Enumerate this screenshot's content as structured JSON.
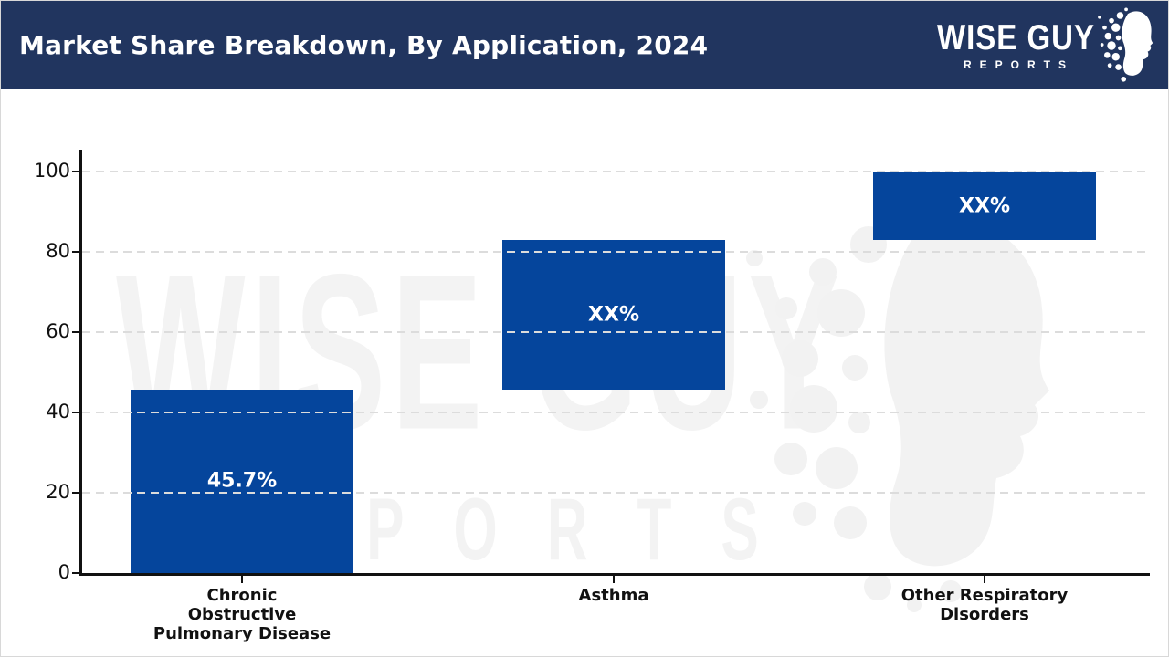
{
  "header": {
    "title": "Market Share Breakdown, By Application, 2024",
    "logo": {
      "line1": "WISE GUY",
      "line2": "REPORTS"
    }
  },
  "watermark": {
    "line1": "WISE GUY",
    "line2": "REPORTS"
  },
  "colors": {
    "header_bg": "#21355f",
    "bar": "#05459c",
    "bar_label_text": "#ffffff",
    "gridline": "#dcdcdc",
    "axis": "#111111",
    "watermark": "#f3f3f3"
  },
  "chart_data": {
    "type": "bar",
    "subtype": "waterfall",
    "title": "Market Share Breakdown, By Application, 2024",
    "categories": [
      "Chronic\nObstructive\nPulmonary Disease",
      "Asthma",
      "Other Respiratory\nDisorders"
    ],
    "segments": [
      {
        "category": "Chronic Obstructive Pulmonary Disease",
        "start": 0,
        "end": 45.7,
        "label": "45.7%"
      },
      {
        "category": "Asthma",
        "start": 45.7,
        "end": 82.9,
        "label": "XX%"
      },
      {
        "category": "Other Respiratory Disorders",
        "start": 82.9,
        "end": 100,
        "label": "XX%"
      }
    ],
    "ylim": [
      0,
      100
    ],
    "yticks": [
      0,
      20,
      40,
      60,
      80,
      100
    ],
    "xlabel": "",
    "ylabel": "",
    "grid": "horizontal-dashed",
    "legend": "none"
  }
}
